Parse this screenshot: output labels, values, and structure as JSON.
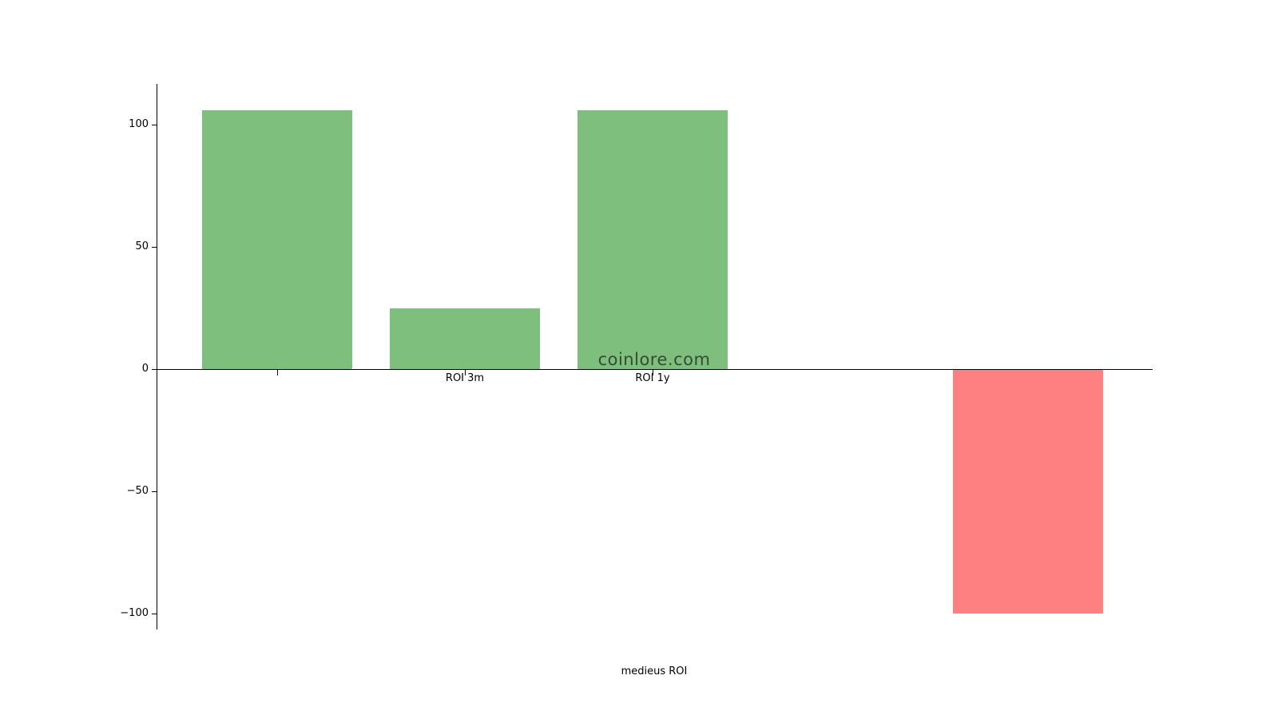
{
  "watermark": "coinlore.com",
  "chart_data": {
    "type": "bar",
    "title": "medieus ROI",
    "xlabel": "medieus ROI",
    "ylabel": "",
    "categories": [
      "",
      "ROI 3m",
      "ROI 1y",
      "",
      ""
    ],
    "values": [
      106,
      25,
      106,
      null,
      -100
    ],
    "bars": [
      {
        "slot": 0,
        "label": "",
        "value": 106,
        "color": "#7ebf7e"
      },
      {
        "slot": 1,
        "label": "ROI 3m",
        "value": 25,
        "color": "#7ebf7e"
      },
      {
        "slot": 2,
        "label": "ROI 1y",
        "value": 106,
        "color": "#7ebf7e"
      },
      {
        "slot": 4,
        "label": "",
        "value": -100,
        "color": "#ff8080"
      }
    ],
    "positive_color": "#7ebf7e",
    "negative_color": "#ff8080",
    "ytick_values": [
      100,
      50,
      0,
      -50,
      -100
    ],
    "ytick_labels": [
      "100",
      "50",
      "0",
      "−50",
      "−100"
    ],
    "xticks": [
      {
        "slot": 0,
        "label": ""
      },
      {
        "slot": 1,
        "label": "ROI 3m"
      },
      {
        "slot": 2,
        "label": "ROI 1y"
      }
    ],
    "ylim": [
      -110,
      117
    ],
    "grid": false,
    "legend": false,
    "watermark": "coinlore.com"
  }
}
